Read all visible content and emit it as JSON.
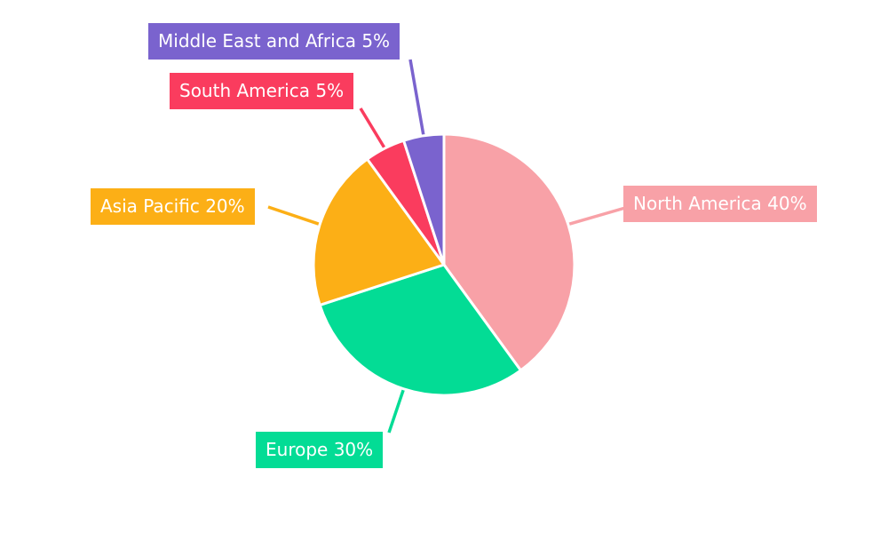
{
  "chart_data": {
    "type": "pie",
    "title": "",
    "labels": [
      "North America",
      "Europe",
      "Asia Pacific",
      "South America",
      "Middle East and Africa"
    ],
    "values": [
      40,
      30,
      20,
      5,
      5
    ],
    "unit": "%",
    "colors": [
      "#F8A1A7",
      "#03DC95",
      "#FCAF16",
      "#FA3C5E",
      "#7A63CE"
    ],
    "annotations": [
      {
        "text": "North America 40%"
      },
      {
        "text": "Europe 30%"
      },
      {
        "text": "Asia Pacific 20%"
      },
      {
        "text": "South America 5%"
      },
      {
        "text": "Middle East and Africa 5%"
      }
    ],
    "start_angle": "12 o'clock",
    "direction": "clockwise",
    "slice_border_color": "#FFFFFF",
    "background": "#FFFFFF",
    "label_text_color": "#FFFFFF",
    "legend_position": "none",
    "grid": false
  }
}
